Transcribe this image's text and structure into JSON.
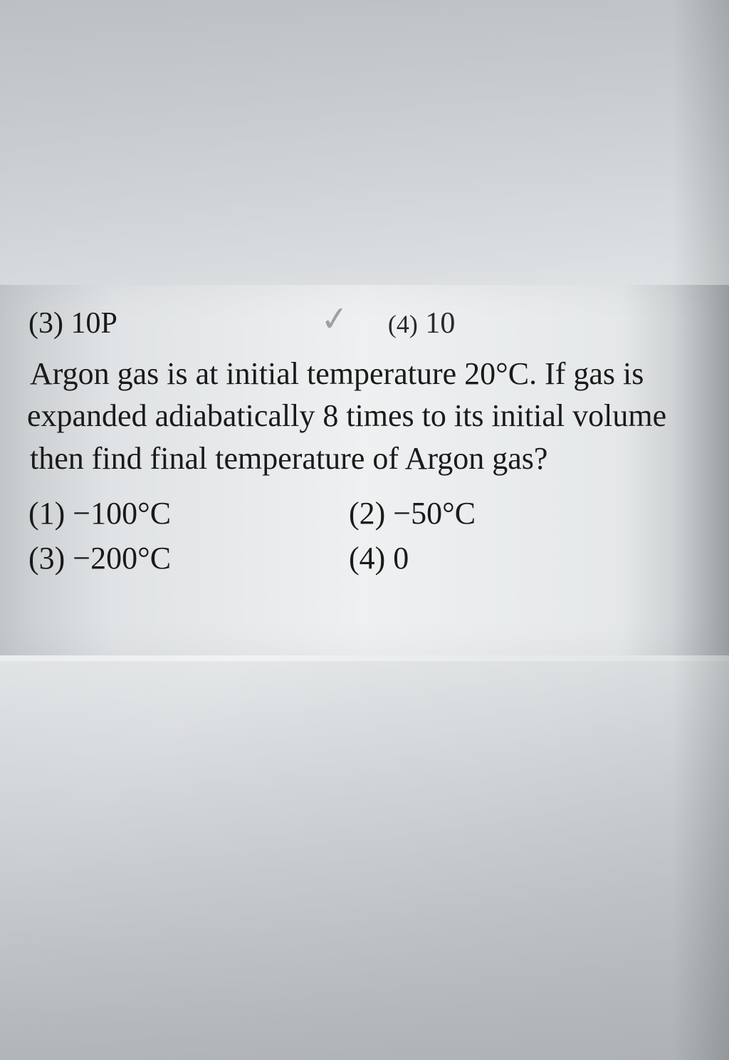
{
  "previous_question": {
    "option_3": "(3) 10P",
    "option_4_num": "(4)",
    "option_4_text": "10"
  },
  "question": {
    "line1": "Argon gas is at initial temperature 20°C. If gas is",
    "line2": "expanded adiabatically 8 times to its initial volume",
    "line3": "then find final temperature of Argon gas?"
  },
  "options": {
    "opt1": "(1) −100°C",
    "opt2": "(2) −50°C",
    "opt3": "(3) −200°C",
    "opt4": "(4) 0"
  },
  "colors": {
    "text_primary": "#1a1a1a",
    "background_light": "#eef0f1",
    "background_dark": "#c5cacd",
    "checkmark": "#a0a0a0"
  },
  "typography": {
    "question_fontsize": 44,
    "option_fontsize": 44,
    "font_family": "Georgia, Times New Roman, serif"
  }
}
